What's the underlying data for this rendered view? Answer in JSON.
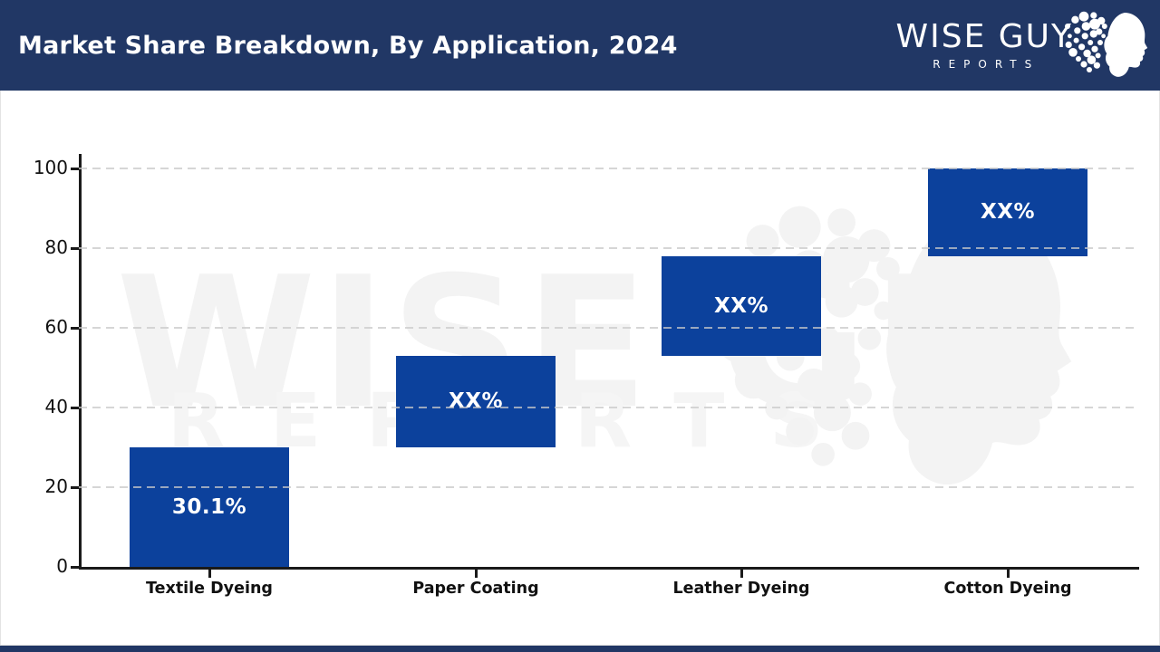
{
  "header": {
    "title": "Market Share Breakdown, By Application, 2024",
    "logo": {
      "line1": "WISE GUY",
      "line2": "REPORTS"
    }
  },
  "watermark": {
    "line1": "WISE GU",
    "line2": "REPORTS"
  },
  "chart_data": {
    "type": "bar",
    "subtype": "waterfall",
    "title": "Market Share Breakdown, By Application, 2024",
    "categories": [
      "Textile Dyeing",
      "Paper Coating",
      "Leather Dyeing",
      "Cotton Dyeing"
    ],
    "bars": [
      {
        "category": "Textile Dyeing",
        "start": 0,
        "end": 30.1,
        "label": "30.1%"
      },
      {
        "category": "Paper Coating",
        "start": 30.1,
        "end": 53,
        "label": "XX%"
      },
      {
        "category": "Leather Dyeing",
        "start": 53,
        "end": 78,
        "label": "XX%"
      },
      {
        "category": "Cotton Dyeing",
        "start": 78,
        "end": 100,
        "label": "XX%"
      }
    ],
    "ylim": [
      0,
      100
    ],
    "yticks": [
      0,
      20,
      40,
      60,
      80,
      100
    ],
    "xlabel": "",
    "ylabel": "",
    "grid": "horizontal-dashed",
    "legend": "none"
  },
  "colors": {
    "header_bg": "#213765",
    "bar_fill": "#0c419c",
    "grid": "#c9c9c9",
    "axis": "#1a1a1a",
    "watermark": "#f3f3f3",
    "bar_label": "#ffffff"
  }
}
